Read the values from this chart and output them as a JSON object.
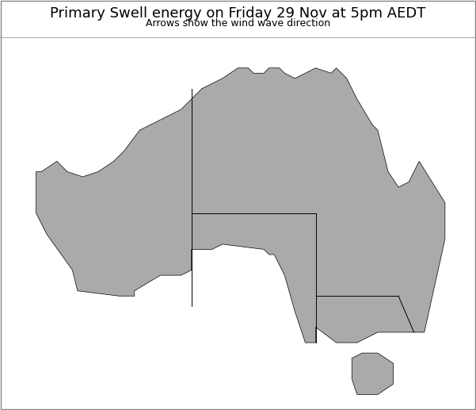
{
  "title": "Primary Swell energy on Friday 29 Nov at 5pm AEDT",
  "subtitle": "Arrows show the wind wave direction",
  "title_fontsize": 13,
  "subtitle_fontsize": 9,
  "fig_width": 6.01,
  "fig_height": 5.17,
  "dpi": 100,
  "background_color": "#ffffff",
  "ocean_color": "#ffffff",
  "land_color": "#aaaaaa",
  "border_color": "#000000",
  "map_extent": [
    112,
    155,
    -45,
    -9
  ],
  "title_color": "#000000"
}
